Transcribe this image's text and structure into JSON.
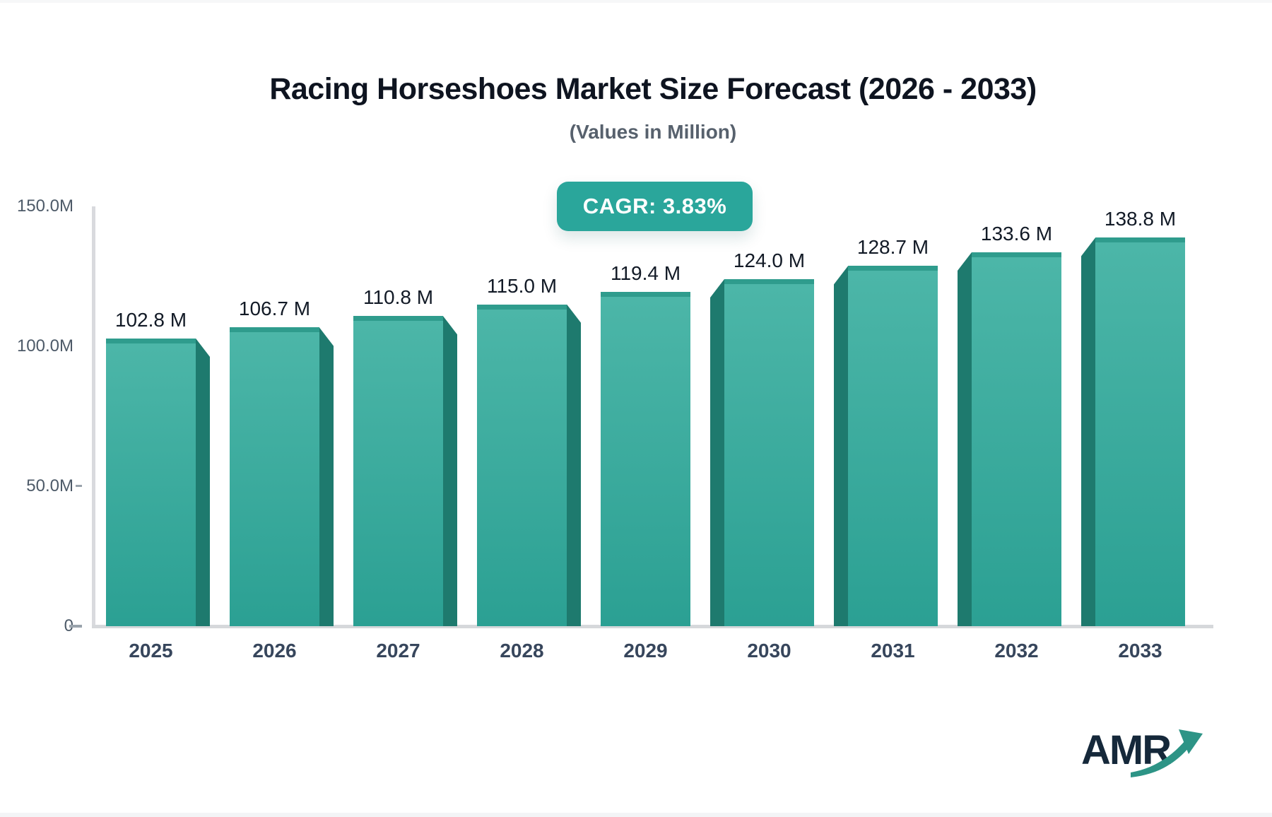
{
  "header": {
    "title": "Racing Horseshoes Market Size Forecast (2026 - 2033)",
    "subtitle": "(Values in Million)"
  },
  "badge": {
    "label": "CAGR: 3.83%"
  },
  "chart_data": {
    "type": "bar",
    "title": "Racing Horseshoes Market Size Forecast (2026 - 2033)",
    "subtitle": "(Values in Million)",
    "unit": "Million",
    "cagr_percent": 3.83,
    "categories": [
      "2025",
      "2026",
      "2027",
      "2028",
      "2029",
      "2030",
      "2031",
      "2032",
      "2033"
    ],
    "values": [
      102.8,
      106.7,
      110.8,
      115.0,
      119.4,
      124.0,
      128.7,
      133.6,
      138.8
    ],
    "value_labels": [
      "102.8 M",
      "106.7 M",
      "110.8 M",
      "115.0 M",
      "119.4 M",
      "124.0 M",
      "128.7 M",
      "133.6 M",
      "138.8 M"
    ],
    "ylim": [
      0,
      150
    ],
    "yticks": [
      {
        "value": 150,
        "label": "150.0M",
        "dash": false
      },
      {
        "value": 100,
        "label": "100.0M",
        "dash": false
      },
      {
        "value": 50,
        "label": "50.0M",
        "dash": true
      },
      {
        "value": 0,
        "label": "0",
        "dash": true
      }
    ],
    "grid": false,
    "legend": null,
    "colors": {
      "bar_face_light": "#4cb6a8",
      "bar_face_dark": "#2ba093",
      "bar_top_edge": "#2f9c8d",
      "bar_side": "#1e7a6e",
      "accent": "#2aa69b"
    }
  },
  "logo": {
    "text": "AMR",
    "arrow_color": "#2d9486"
  }
}
